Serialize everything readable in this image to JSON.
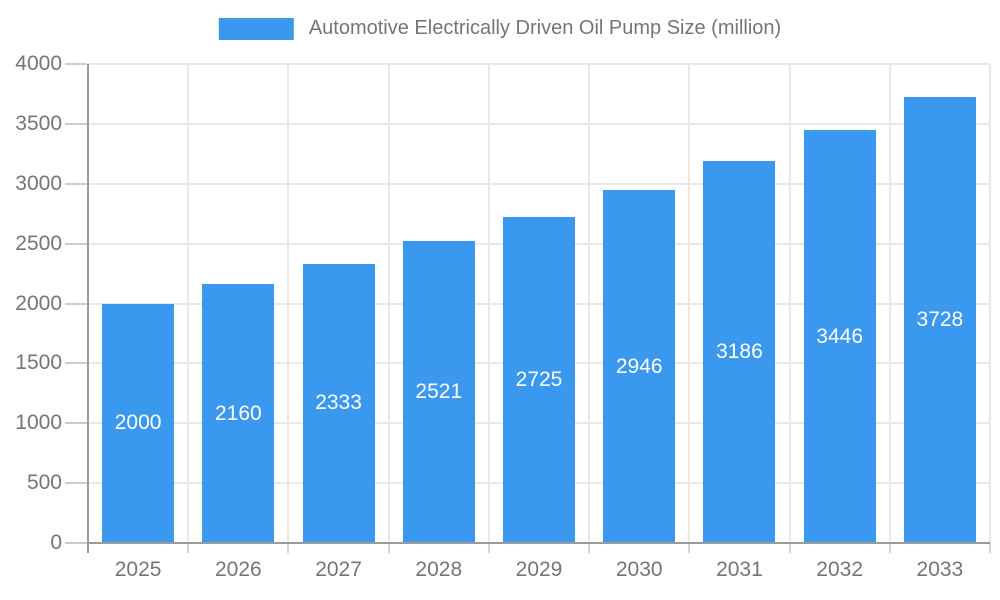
{
  "legend": {
    "label": "Automotive Electrically Driven Oil Pump Size (million)"
  },
  "chart_data": {
    "type": "bar",
    "title": "Automotive Electrically Driven Oil Pump Size (million)",
    "categories": [
      "2025",
      "2026",
      "2027",
      "2028",
      "2029",
      "2030",
      "2031",
      "2032",
      "2033"
    ],
    "series": [
      {
        "name": "Automotive Electrically Driven Oil Pump Size (million)",
        "values": [
          2000,
          2160,
          2333,
          2521,
          2725,
          2946,
          3186,
          3446,
          3728
        ]
      }
    ],
    "value_labels_shown": true,
    "xlabel": "",
    "ylabel": "",
    "ylim": [
      0,
      4000
    ],
    "yticks": [
      0,
      500,
      1000,
      1500,
      2000,
      2500,
      3000,
      3500,
      4000
    ],
    "grid": true,
    "legend_position": "top"
  },
  "colors": {
    "bar": "#3a99ee",
    "value_label": "#ffffff",
    "axis_text": "#757575",
    "axis_line": "#9b9b9b",
    "gridline": "#e8e8e8",
    "background": "#ffffff"
  }
}
